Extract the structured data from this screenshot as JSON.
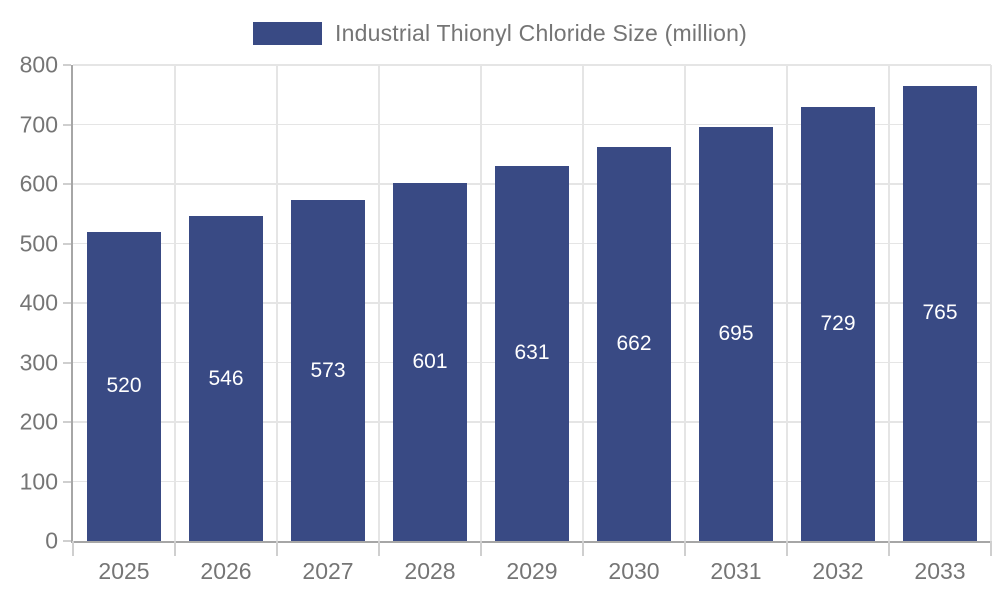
{
  "legend": {
    "label": "Industrial Thionyl Chloride Size (million)"
  },
  "chart_data": {
    "type": "bar",
    "title": "Industrial Thionyl Chloride Size (million)",
    "series_name": "Industrial Thionyl Chloride Size (million)",
    "categories": [
      "2025",
      "2026",
      "2027",
      "2028",
      "2029",
      "2030",
      "2031",
      "2032",
      "2033"
    ],
    "values": [
      520,
      546,
      573,
      601,
      631,
      662,
      695,
      729,
      765
    ],
    "value_labels": [
      "520",
      "546",
      "573",
      "601",
      "631",
      "662",
      "695",
      "729",
      "765"
    ],
    "xlabel": "",
    "ylabel": "",
    "ylim": [
      0,
      800
    ],
    "yticks": [
      0,
      100,
      200,
      300,
      400,
      500,
      600,
      700,
      800
    ],
    "grid": true,
    "legend_position": "top",
    "colors": {
      "bar": "#394a84",
      "value_label": "#ffffff",
      "tick_label": "#757575",
      "gridline": "#e5e5e5",
      "axis_line": "#a6a6a6"
    }
  }
}
